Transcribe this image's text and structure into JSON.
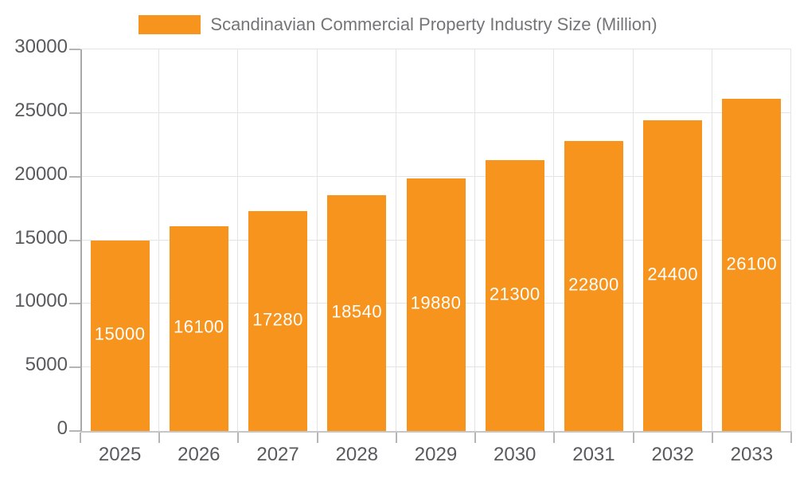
{
  "colors": {
    "bar": "#f7941e",
    "grid": "#e4e4e4",
    "y_axis": "#a9a9a9",
    "x_axis": "#c6c6c6",
    "tick": "#b5b5b5",
    "tick_label_text": "#595a5c",
    "legend_text": "#747578",
    "value_label_text": "#ffffff",
    "background": "#ffffff"
  },
  "chart_data": {
    "type": "bar",
    "legend": [
      "Scandinavian Commercial Property Industry Size (Million)"
    ],
    "legend_position": "top-center",
    "categories": [
      "2025",
      "2026",
      "2027",
      "2028",
      "2029",
      "2030",
      "2031",
      "2032",
      "2033"
    ],
    "values": [
      15000,
      16100,
      17280,
      18540,
      19880,
      21300,
      22800,
      24400,
      26100
    ],
    "value_labels": "inside-middle-white",
    "xlabel": "",
    "ylabel": "",
    "ylim": [
      0,
      30000
    ],
    "y_ticks": [
      0,
      5000,
      10000,
      15000,
      20000,
      25000,
      30000
    ],
    "grid": true
  }
}
